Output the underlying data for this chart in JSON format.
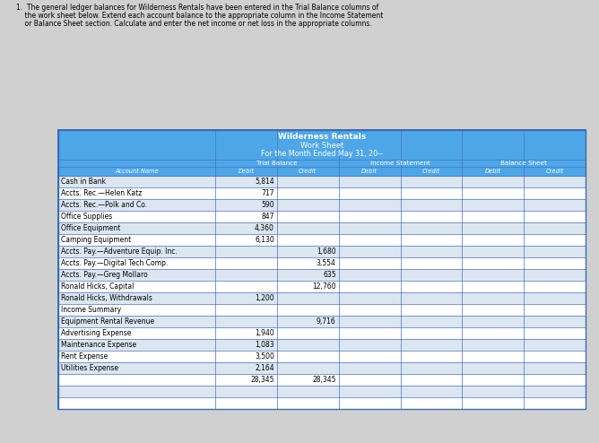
{
  "instruction_line1": "1.  The general ledger balances for Wilderness Rentals have been entered in the Trial Balance columns of",
  "instruction_line2": "    the work sheet below. Extend each account balance to the appropriate column in the Income Statement",
  "instruction_line3": "    or Balance Sheet section. Calculate and enter the net income or net loss in the appropriate columns.",
  "title1": "Wilderness Rentals",
  "title2": "Work Sheet",
  "title3": "For the Month Ended May 31, 20--",
  "section_headers": [
    "Trial Balance",
    "Income Statement",
    "Balance Sheet"
  ],
  "col_headers": [
    "Account Name",
    "Debit",
    "Credit",
    "Debit",
    "Credit",
    "Debit",
    "Credit"
  ],
  "rows": [
    {
      "account": "Cash in Bank",
      "tb_debit": "5,814",
      "tb_credit": "",
      "is_debit": "",
      "is_credit": "",
      "bs_debit": "",
      "bs_credit": ""
    },
    {
      "account": "Accts. Rec.—Helen Katz",
      "tb_debit": "717",
      "tb_credit": "",
      "is_debit": "",
      "is_credit": "",
      "bs_debit": "",
      "bs_credit": ""
    },
    {
      "account": "Accts. Rec.—Polk and Co.",
      "tb_debit": "590",
      "tb_credit": "",
      "is_debit": "",
      "is_credit": "",
      "bs_debit": "",
      "bs_credit": ""
    },
    {
      "account": "Office Supplies",
      "tb_debit": "847",
      "tb_credit": "",
      "is_debit": "",
      "is_credit": "",
      "bs_debit": "",
      "bs_credit": ""
    },
    {
      "account": "Office Equipment",
      "tb_debit": "4,360",
      "tb_credit": "",
      "is_debit": "",
      "is_credit": "",
      "bs_debit": "",
      "bs_credit": ""
    },
    {
      "account": "Camping Equipment",
      "tb_debit": "6,130",
      "tb_credit": "",
      "is_debit": "",
      "is_credit": "",
      "bs_debit": "",
      "bs_credit": ""
    },
    {
      "account": "Accts. Pay.—Adventure Equip. Inc.",
      "tb_debit": "",
      "tb_credit": "1,680",
      "is_debit": "",
      "is_credit": "",
      "bs_debit": "",
      "bs_credit": ""
    },
    {
      "account": "Accts. Pay.—Digital Tech Comp.",
      "tb_debit": "",
      "tb_credit": "3,554",
      "is_debit": "",
      "is_credit": "",
      "bs_debit": "",
      "bs_credit": ""
    },
    {
      "account": "Accts. Pay.—Greg Mollaro",
      "tb_debit": "",
      "tb_credit": "635",
      "is_debit": "",
      "is_credit": "",
      "bs_debit": "",
      "bs_credit": ""
    },
    {
      "account": "Ronald Hicks, Capital",
      "tb_debit": "",
      "tb_credit": "12,760",
      "is_debit": "",
      "is_credit": "",
      "bs_debit": "",
      "bs_credit": ""
    },
    {
      "account": "Ronald Hicks, Withdrawals",
      "tb_debit": "1,200",
      "tb_credit": "",
      "is_debit": "",
      "is_credit": "",
      "bs_debit": "",
      "bs_credit": ""
    },
    {
      "account": "Income Summary",
      "tb_debit": "",
      "tb_credit": "",
      "is_debit": "",
      "is_credit": "",
      "bs_debit": "",
      "bs_credit": ""
    },
    {
      "account": "Equipment Rental Revenue",
      "tb_debit": "",
      "tb_credit": "9,716",
      "is_debit": "",
      "is_credit": "",
      "bs_debit": "",
      "bs_credit": ""
    },
    {
      "account": "Advertising Expense",
      "tb_debit": "1,940",
      "tb_credit": "",
      "is_debit": "",
      "is_credit": "",
      "bs_debit": "",
      "bs_credit": ""
    },
    {
      "account": "Maintenance Expense",
      "tb_debit": "1,083",
      "tb_credit": "",
      "is_debit": "",
      "is_credit": "",
      "bs_debit": "",
      "bs_credit": ""
    },
    {
      "account": "Rent Expense",
      "tb_debit": "3,500",
      "tb_credit": "",
      "is_debit": "",
      "is_credit": "",
      "bs_debit": "",
      "bs_credit": ""
    },
    {
      "account": "Utilities Expense",
      "tb_debit": "2,164",
      "tb_credit": "",
      "is_debit": "",
      "is_credit": "",
      "bs_debit": "",
      "bs_credit": ""
    },
    {
      "account": "",
      "tb_debit": "28,345",
      "tb_credit": "28,345",
      "is_debit": "",
      "is_credit": "",
      "bs_debit": "",
      "bs_credit": ""
    }
  ],
  "extra_blank_rows": 2,
  "header_bg": "#4da6e8",
  "grid_color": "#4472c4",
  "row_bg_even": "#dce6f1",
  "row_bg_odd": "#ffffff",
  "text_color_header": "#ffffff",
  "text_color_body": "#000000",
  "fig_bg": "#d0d0d0"
}
